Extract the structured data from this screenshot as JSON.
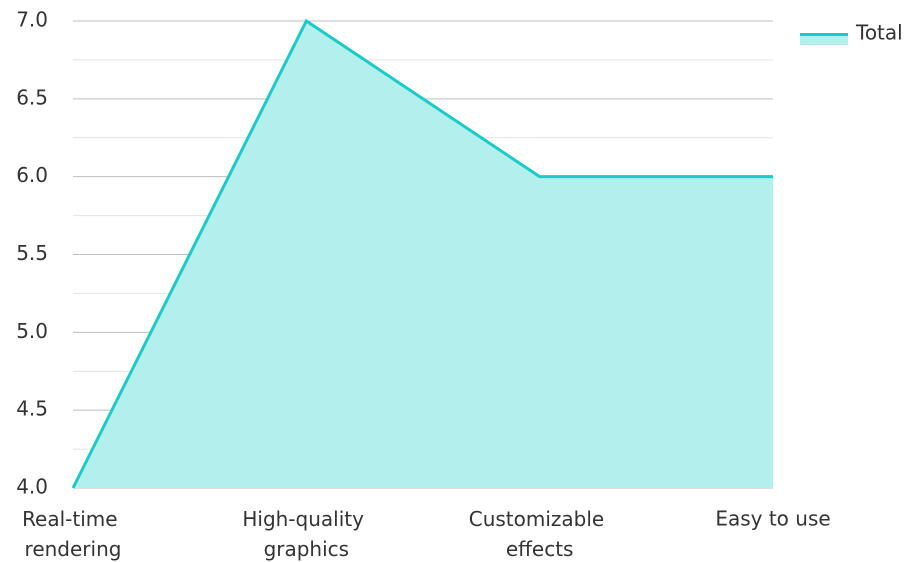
{
  "chart_data": {
    "type": "area",
    "categories": [
      "Real-time rendering",
      "High-quality graphics",
      "Customizable effects",
      "Easy to use"
    ],
    "series": [
      {
        "name": "Total",
        "color": "#1ccac7",
        "fill": "#b2efed",
        "values": [
          4,
          7,
          6,
          6
        ]
      }
    ],
    "ylim": [
      4,
      7
    ],
    "yticks": [
      {
        "value": 4,
        "label": "4.0"
      },
      4.5,
      {
        "value": 5,
        "label": "5.0"
      },
      5.5,
      {
        "value": 6,
        "label": "6.0"
      },
      6.5,
      {
        "value": 7,
        "label": "7.0"
      }
    ],
    "grid": true,
    "minor_grid": true,
    "legend": "top-right"
  }
}
